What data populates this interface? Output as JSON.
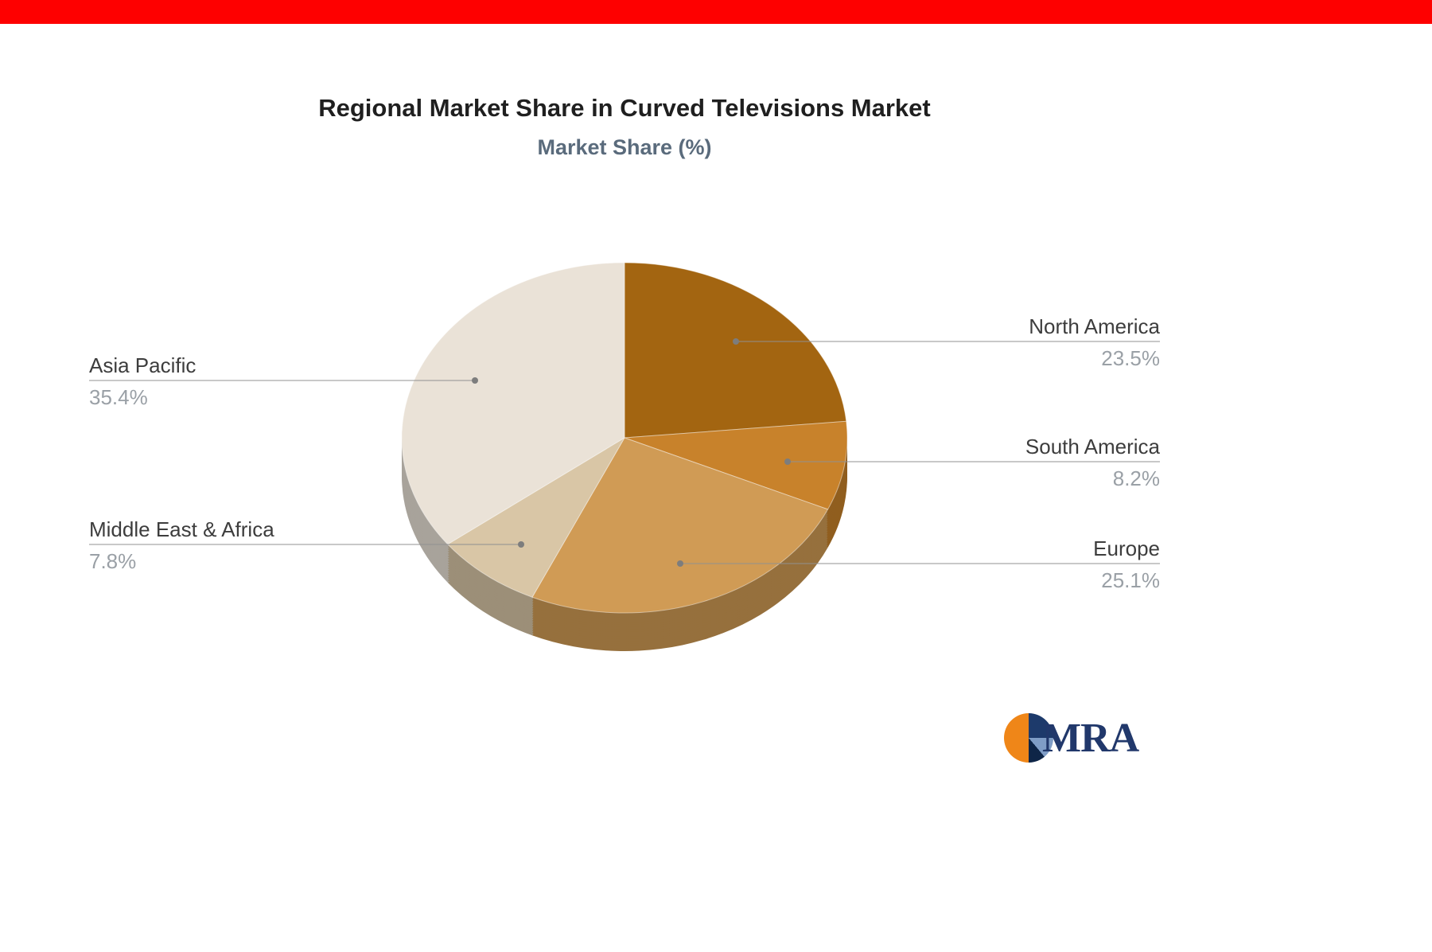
{
  "page": {
    "top_bar_color": "#fe0000",
    "background": "#ffffff"
  },
  "header": {
    "title": "Regional Market Share in Curved Televisions Market",
    "subtitle": "Market Share (%)"
  },
  "chart_data": {
    "type": "pie",
    "title": "Regional Market Share in Curved Televisions Market",
    "subtitle": "Market Share (%)",
    "unit": "%",
    "start_angle_deg": 0,
    "direction": "clockwise",
    "legend_position": "callout-labels",
    "style": "3d-pie",
    "segments": [
      {
        "label": "North America",
        "value": 23.5,
        "value_label": "23.5%",
        "color": "#a36511"
      },
      {
        "label": "South America",
        "value": 8.2,
        "value_label": "8.2%",
        "color": "#c8822b"
      },
      {
        "label": "Europe",
        "value": 25.1,
        "value_label": "25.1%",
        "color": "#d09b55"
      },
      {
        "label": "Middle East & Africa",
        "value": 7.8,
        "value_label": "7.8%",
        "color": "#d9c6a6"
      },
      {
        "label": "Asia Pacific",
        "value": 35.4,
        "value_label": "35.4%",
        "color": "#eae2d7"
      }
    ]
  },
  "logo": {
    "text": "MRA",
    "mark_colors": {
      "navy": "#1d3a6b",
      "steel": "#7f9dc6",
      "dark": "#0e2547",
      "orange": "#ef8618"
    }
  }
}
